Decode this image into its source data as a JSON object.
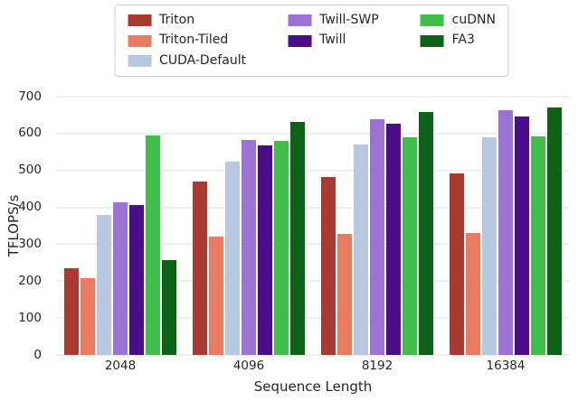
{
  "chart_data": {
    "type": "bar",
    "title": "",
    "xlabel": "Sequence Length",
    "ylabel": "TFLOPS/s",
    "categories": [
      "2048",
      "4096",
      "8192",
      "16384"
    ],
    "series": [
      {
        "name": "Triton",
        "color": "#a83a32",
        "values": [
          235,
          470,
          483,
          492
        ]
      },
      {
        "name": "Triton-Tiled",
        "color": "#e97b60",
        "values": [
          208,
          321,
          328,
          331
        ]
      },
      {
        "name": "CUDA-Default",
        "color": "#b8c8e0",
        "values": [
          379,
          524,
          570,
          591
        ]
      },
      {
        "name": "Twill-SWP",
        "color": "#9c72d4",
        "values": [
          414,
          582,
          639,
          663
        ]
      },
      {
        "name": "Twill",
        "color": "#4c0d8a",
        "values": [
          406,
          568,
          627,
          646
        ]
      },
      {
        "name": "cuDNN",
        "color": "#41bd4c",
        "values": [
          595,
          580,
          590,
          592
        ]
      },
      {
        "name": "FA3",
        "color": "#0c6216",
        "values": [
          257,
          631,
          658,
          670
        ]
      }
    ],
    "ylim": [
      0,
      700
    ],
    "yticks": [
      0,
      100,
      200,
      300,
      400,
      500,
      600,
      700
    ],
    "grid": true,
    "grid_color": "#dcdcdc",
    "legend_position": "top",
    "legend_columns": [
      [
        "Triton",
        "Triton-Tiled",
        "CUDA-Default"
      ],
      [
        "Twill-SWP",
        "Twill"
      ],
      [
        "cuDNN",
        "FA3"
      ]
    ]
  }
}
